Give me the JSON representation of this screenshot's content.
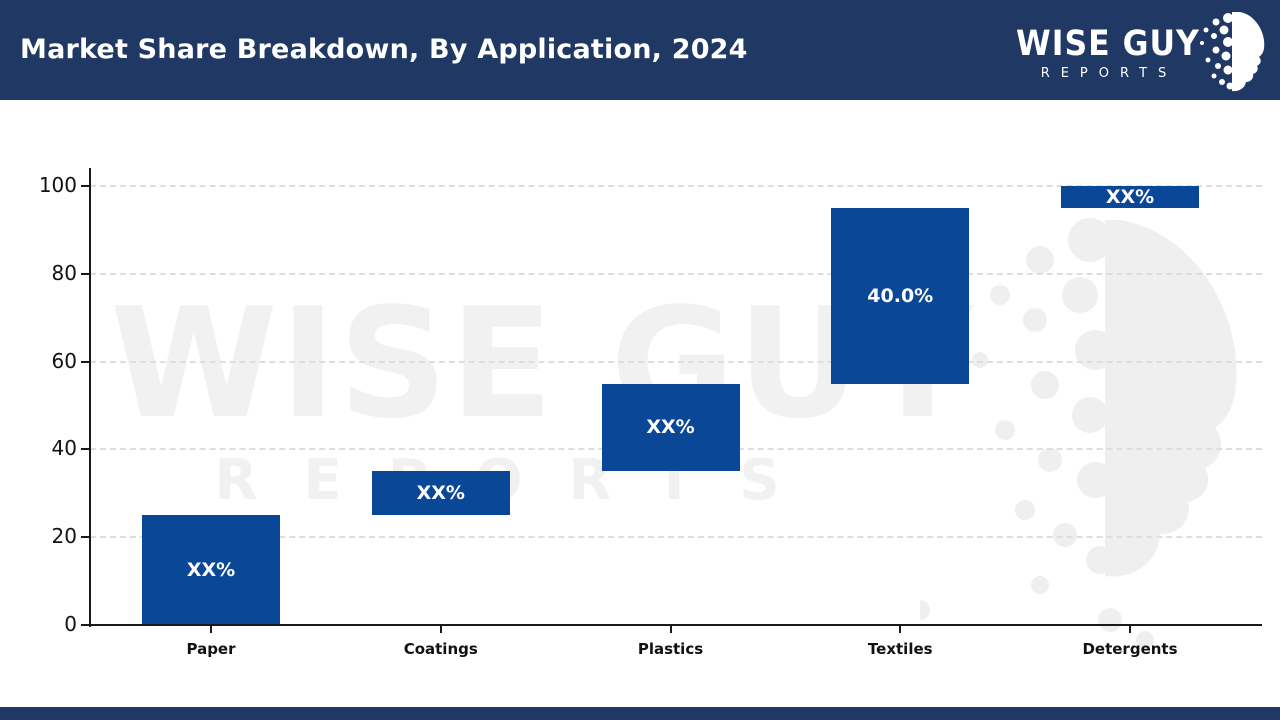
{
  "header": {
    "title": "Market Share Breakdown, By Application, 2024",
    "logo": {
      "line1": "WISE GUY",
      "line2": "REPORTS"
    }
  },
  "watermark": {
    "line1": "WISE GUY",
    "line2": "REPORTS"
  },
  "colors": {
    "header_bg": "#1f3864",
    "footer_bg": "#1f3864",
    "bar": "#0a4796",
    "grid": "#dedede",
    "axis": "#1a1a1a",
    "watermark": "#f1f1f1",
    "title_text": "#ffffff",
    "bar_label_text": "#ffffff"
  },
  "chart_data": {
    "type": "bar",
    "subtype": "waterfall",
    "title": "Market Share Breakdown, By Application, 2024",
    "xlabel": "",
    "ylabel": "",
    "categories": [
      "Paper",
      "Coatings",
      "Plastics",
      "Textiles",
      "Detergents"
    ],
    "segments": [
      {
        "category": "Paper",
        "start": 0,
        "end": 25,
        "value": 25,
        "label": "XX%"
      },
      {
        "category": "Coatings",
        "start": 25,
        "end": 35,
        "value": 10,
        "label": "XX%"
      },
      {
        "category": "Plastics",
        "start": 35,
        "end": 55,
        "value": 20,
        "label": "XX%"
      },
      {
        "category": "Textiles",
        "start": 55,
        "end": 95,
        "value": 40,
        "label": "40.0%"
      },
      {
        "category": "Detergents",
        "start": 95,
        "end": 100,
        "value": 5,
        "label": "XX%"
      }
    ],
    "yticks": [
      0,
      20,
      40,
      60,
      80,
      100
    ],
    "ylim": [
      0,
      103.5
    ],
    "grid": "horizontal-dashed",
    "legend": "none",
    "bar_color": "#0a4796"
  }
}
